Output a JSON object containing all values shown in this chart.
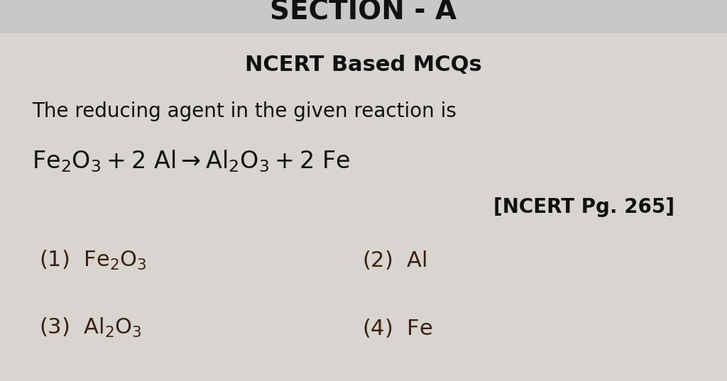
{
  "bg_top": "#c8c8c8",
  "bg_main": "#d8d5d0",
  "section_title": "SECTION - A",
  "section_title_color": "#111111",
  "section_title_fontsize": 28,
  "subtitle": "NCERT Based MCQs",
  "subtitle_fontsize": 22,
  "question_text": "The reducing agent in the given reaction is",
  "question_fontsize": 20,
  "reaction_fontsize": 22,
  "ncert_ref": "[NCERT Pg. 265]",
  "ncert_ref_fontsize": 20,
  "options_fontsize": 22,
  "text_color": "#111111",
  "options_color": "#3a2010"
}
